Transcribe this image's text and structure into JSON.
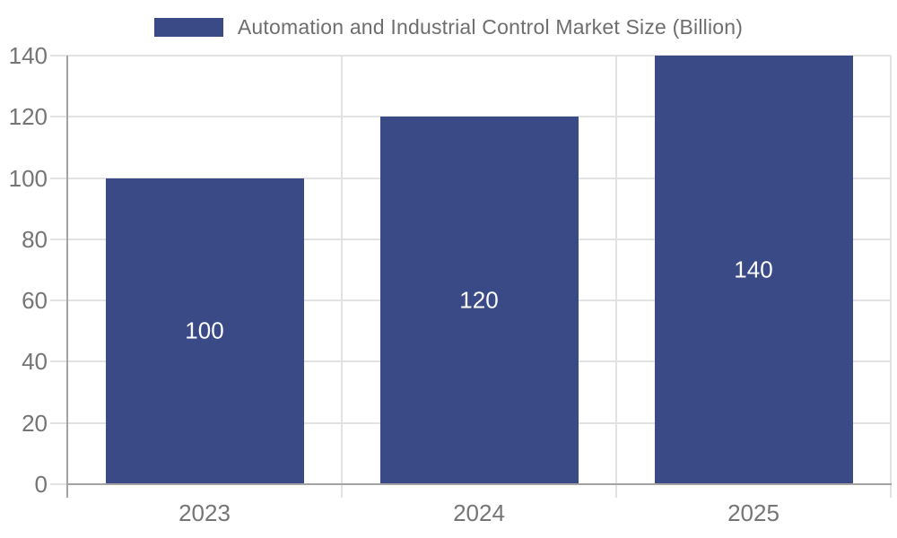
{
  "chart_data": {
    "type": "bar",
    "title": "Automation and Industrial Control Market Size (Billion)",
    "categories": [
      "2023",
      "2024",
      "2025"
    ],
    "values": [
      100,
      120,
      140
    ],
    "series": [
      {
        "name": "Automation and Industrial Control Market Size (Billion)",
        "values": [
          100,
          120,
          140
        ]
      }
    ],
    "xlabel": "",
    "ylabel": "",
    "ylim": [
      0,
      140
    ],
    "yticks": [
      0,
      20,
      40,
      60,
      80,
      100,
      120,
      140
    ],
    "grid": true,
    "legend_position": "top",
    "data_labels_visible": true,
    "colors": {
      "bar": "#3A4A87",
      "data_label": "#FFFFFF",
      "axis_text": "#757575",
      "title_text": "#6E6E6E",
      "gridline": "#E2E2E2",
      "axis_line": "#A3A3A3",
      "background": "#FFFFFF"
    }
  }
}
